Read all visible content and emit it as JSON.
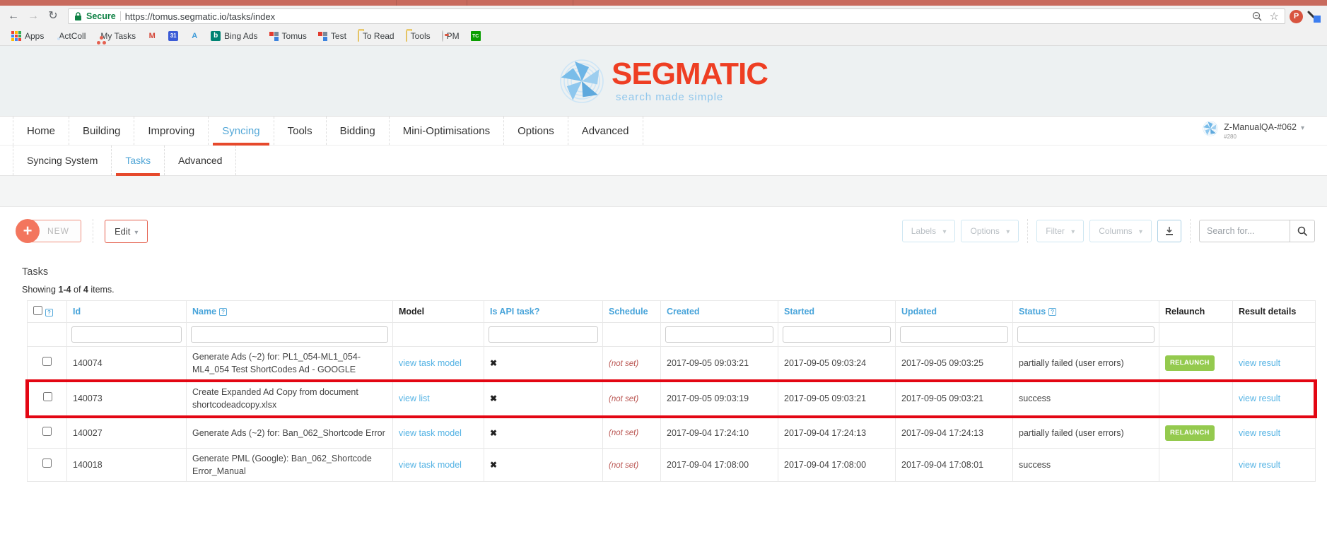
{
  "colors": {
    "theme_strip": "#c86a5d",
    "brand_red": "#ee3e23",
    "logo_blue": "#8fc6ec",
    "accent_red": "#e6492c",
    "active_blue": "#53a7d7",
    "link_header": "#48a4da",
    "link_blue": "#55b3e4",
    "notset_red": "#b9534f",
    "relaunch_green": "#94ca4e",
    "hl_red": "#e30613",
    "secure_green": "#0e8144"
  },
  "browser": {
    "url": "https://tomus.segmatic.io/tasks/index",
    "secure_label": "Secure",
    "extension_p_label": "P",
    "bookmarks": [
      {
        "label": "Apps",
        "icon": "apps-grid"
      },
      {
        "label": "ActColl",
        "icon": "actcoll"
      },
      {
        "label": "My Tasks",
        "icon": "dots"
      },
      {
        "label": "",
        "icon": "gmail",
        "glyph": "M"
      },
      {
        "label": "",
        "icon": "calendar",
        "glyph": "31"
      },
      {
        "label": "",
        "icon": "analytics",
        "glyph": "A"
      },
      {
        "label": "Bing Ads",
        "icon": "bing",
        "glyph": "b"
      },
      {
        "label": "Tomus",
        "icon": "tile-grid"
      },
      {
        "label": "Test",
        "icon": "tile-grid"
      },
      {
        "label": "To Read",
        "icon": "folder"
      },
      {
        "label": "Tools",
        "icon": "folder"
      },
      {
        "label": "PM",
        "icon": "pm"
      },
      {
        "label": "",
        "icon": "tc",
        "glyph": "TC"
      }
    ]
  },
  "header": {
    "brand": "SEGMATIC",
    "tagline": "search made simple"
  },
  "user": {
    "name": "Z-ManualQA-#062",
    "sub": "#280"
  },
  "nav": {
    "items": [
      "Home",
      "Building",
      "Improving",
      "Syncing",
      "Tools",
      "Bidding",
      "Mini-Optimisations",
      "Options",
      "Advanced"
    ],
    "active_index": 3
  },
  "subnav": {
    "items": [
      "Syncing System",
      "Tasks",
      "Advanced"
    ],
    "active_index": 1
  },
  "toolbar": {
    "new_label": "NEW",
    "new_plus": "+",
    "edit_label": "Edit",
    "labels_label": "Labels",
    "options_label": "Options",
    "filter_label": "Filter",
    "columns_label": "Columns",
    "search_placeholder": "Search for..."
  },
  "content": {
    "title": "Tasks",
    "showing": {
      "pre": "Showing ",
      "range": "1-4",
      "mid": " of ",
      "total": "4",
      "post": " items."
    },
    "table": {
      "columns": [
        {
          "key": "sel",
          "label": "",
          "sortable": false,
          "help": true,
          "filter": false
        },
        {
          "key": "id",
          "label": "Id",
          "sortable": true,
          "help": false,
          "filter": true
        },
        {
          "key": "name",
          "label": "Name",
          "sortable": true,
          "help": true,
          "filter": true
        },
        {
          "key": "model",
          "label": "Model",
          "sortable": false,
          "help": false,
          "filter": false
        },
        {
          "key": "is_api",
          "label": "Is API task?",
          "sortable": true,
          "help": false,
          "filter": true
        },
        {
          "key": "schedule",
          "label": "Schedule",
          "sortable": true,
          "help": false,
          "filter": false
        },
        {
          "key": "created",
          "label": "Created",
          "sortable": true,
          "help": false,
          "filter": true
        },
        {
          "key": "started",
          "label": "Started",
          "sortable": true,
          "help": false,
          "filter": true
        },
        {
          "key": "updated",
          "label": "Updated",
          "sortable": true,
          "help": false,
          "filter": true
        },
        {
          "key": "status",
          "label": "Status",
          "sortable": true,
          "help": true,
          "filter": true
        },
        {
          "key": "relaunch",
          "label": "Relaunch",
          "sortable": false,
          "help": false,
          "filter": false
        },
        {
          "key": "result",
          "label": "Result details",
          "sortable": false,
          "help": false,
          "filter": false
        }
      ],
      "rows": [
        {
          "id": "140074",
          "name": "Generate Ads (~2) for: PL1_054-ML1_054-ML4_054 Test ShortCodes Ad - GOOGLE",
          "model_link": "view task model",
          "is_api": "✖",
          "schedule": "(not set)",
          "created": "2017-09-05 09:03:21",
          "started": "2017-09-05 09:03:24",
          "updated": "2017-09-05 09:03:25",
          "status": "partially failed (user errors)",
          "relaunch": "RELAUNCH",
          "result_link": "view result",
          "highlighted": false
        },
        {
          "id": "140073",
          "name": "Create Expanded Ad Copy from document shortcodeadcopy.xlsx",
          "model_link": "view list",
          "is_api": "✖",
          "schedule": "(not set)",
          "created": "2017-09-05 09:03:19",
          "started": "2017-09-05 09:03:21",
          "updated": "2017-09-05 09:03:21",
          "status": "success",
          "relaunch": "",
          "result_link": "view result",
          "highlighted": true
        },
        {
          "id": "140027",
          "name": "Generate Ads (~2) for: Ban_062_Shortcode Error",
          "model_link": "view task model",
          "is_api": "✖",
          "schedule": "(not set)",
          "created": "2017-09-04 17:24:10",
          "started": "2017-09-04 17:24:13",
          "updated": "2017-09-04 17:24:13",
          "status": "partially failed (user errors)",
          "relaunch": "RELAUNCH",
          "result_link": "view result",
          "highlighted": false
        },
        {
          "id": "140018",
          "name": "Generate PML (Google): Ban_062_Shortcode Error_Manual",
          "model_link": "view task model",
          "is_api": "✖",
          "schedule": "(not set)",
          "created": "2017-09-04 17:08:00",
          "started": "2017-09-04 17:08:00",
          "updated": "2017-09-04 17:08:01",
          "status": "success",
          "relaunch": "",
          "result_link": "view result",
          "highlighted": false
        }
      ]
    }
  }
}
